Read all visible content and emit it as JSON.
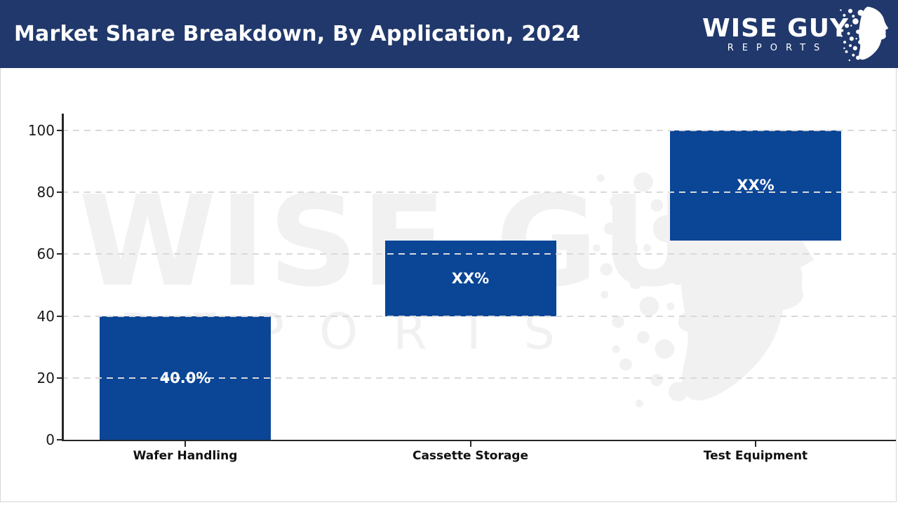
{
  "header": {
    "title": "Market Share Breakdown, By Application, 2024",
    "logo": {
      "wordmark": "WISE GUY",
      "subtext": "REPORTS"
    }
  },
  "watermark": {
    "line1": "WISE GUY",
    "line2": "REPORTS"
  },
  "colors": {
    "header_bg": "#20386b",
    "bar": "#0a4596",
    "grid": "#d9d9d9",
    "axis": "#262626",
    "tick_text": "#1a1a1a",
    "bar_label_text": "#ffffff",
    "watermark": "#f1f1f2"
  },
  "chart_data": {
    "type": "bar",
    "subtype": "waterfall",
    "title": "Market Share Breakdown, By Application, 2024",
    "categories": [
      "Wafer Handling",
      "Cassette Storage",
      "Test Equipment"
    ],
    "series": [
      {
        "name": "Market Share (%)",
        "segments": [
          {
            "category": "Wafer Handling",
            "start": 0,
            "end": 40,
            "label": "40.0%"
          },
          {
            "category": "Cassette Storage",
            "start": 40,
            "end": 64.5,
            "label": "XX%"
          },
          {
            "category": "Test Equipment",
            "start": 64.5,
            "end": 100,
            "label": "XX%"
          }
        ]
      }
    ],
    "xlabel": "",
    "ylabel": "",
    "ylim": [
      0,
      100
    ],
    "yticks": [
      0,
      20,
      40,
      60,
      80,
      100
    ],
    "grid": "horizontal-dashed",
    "legend": "none"
  }
}
